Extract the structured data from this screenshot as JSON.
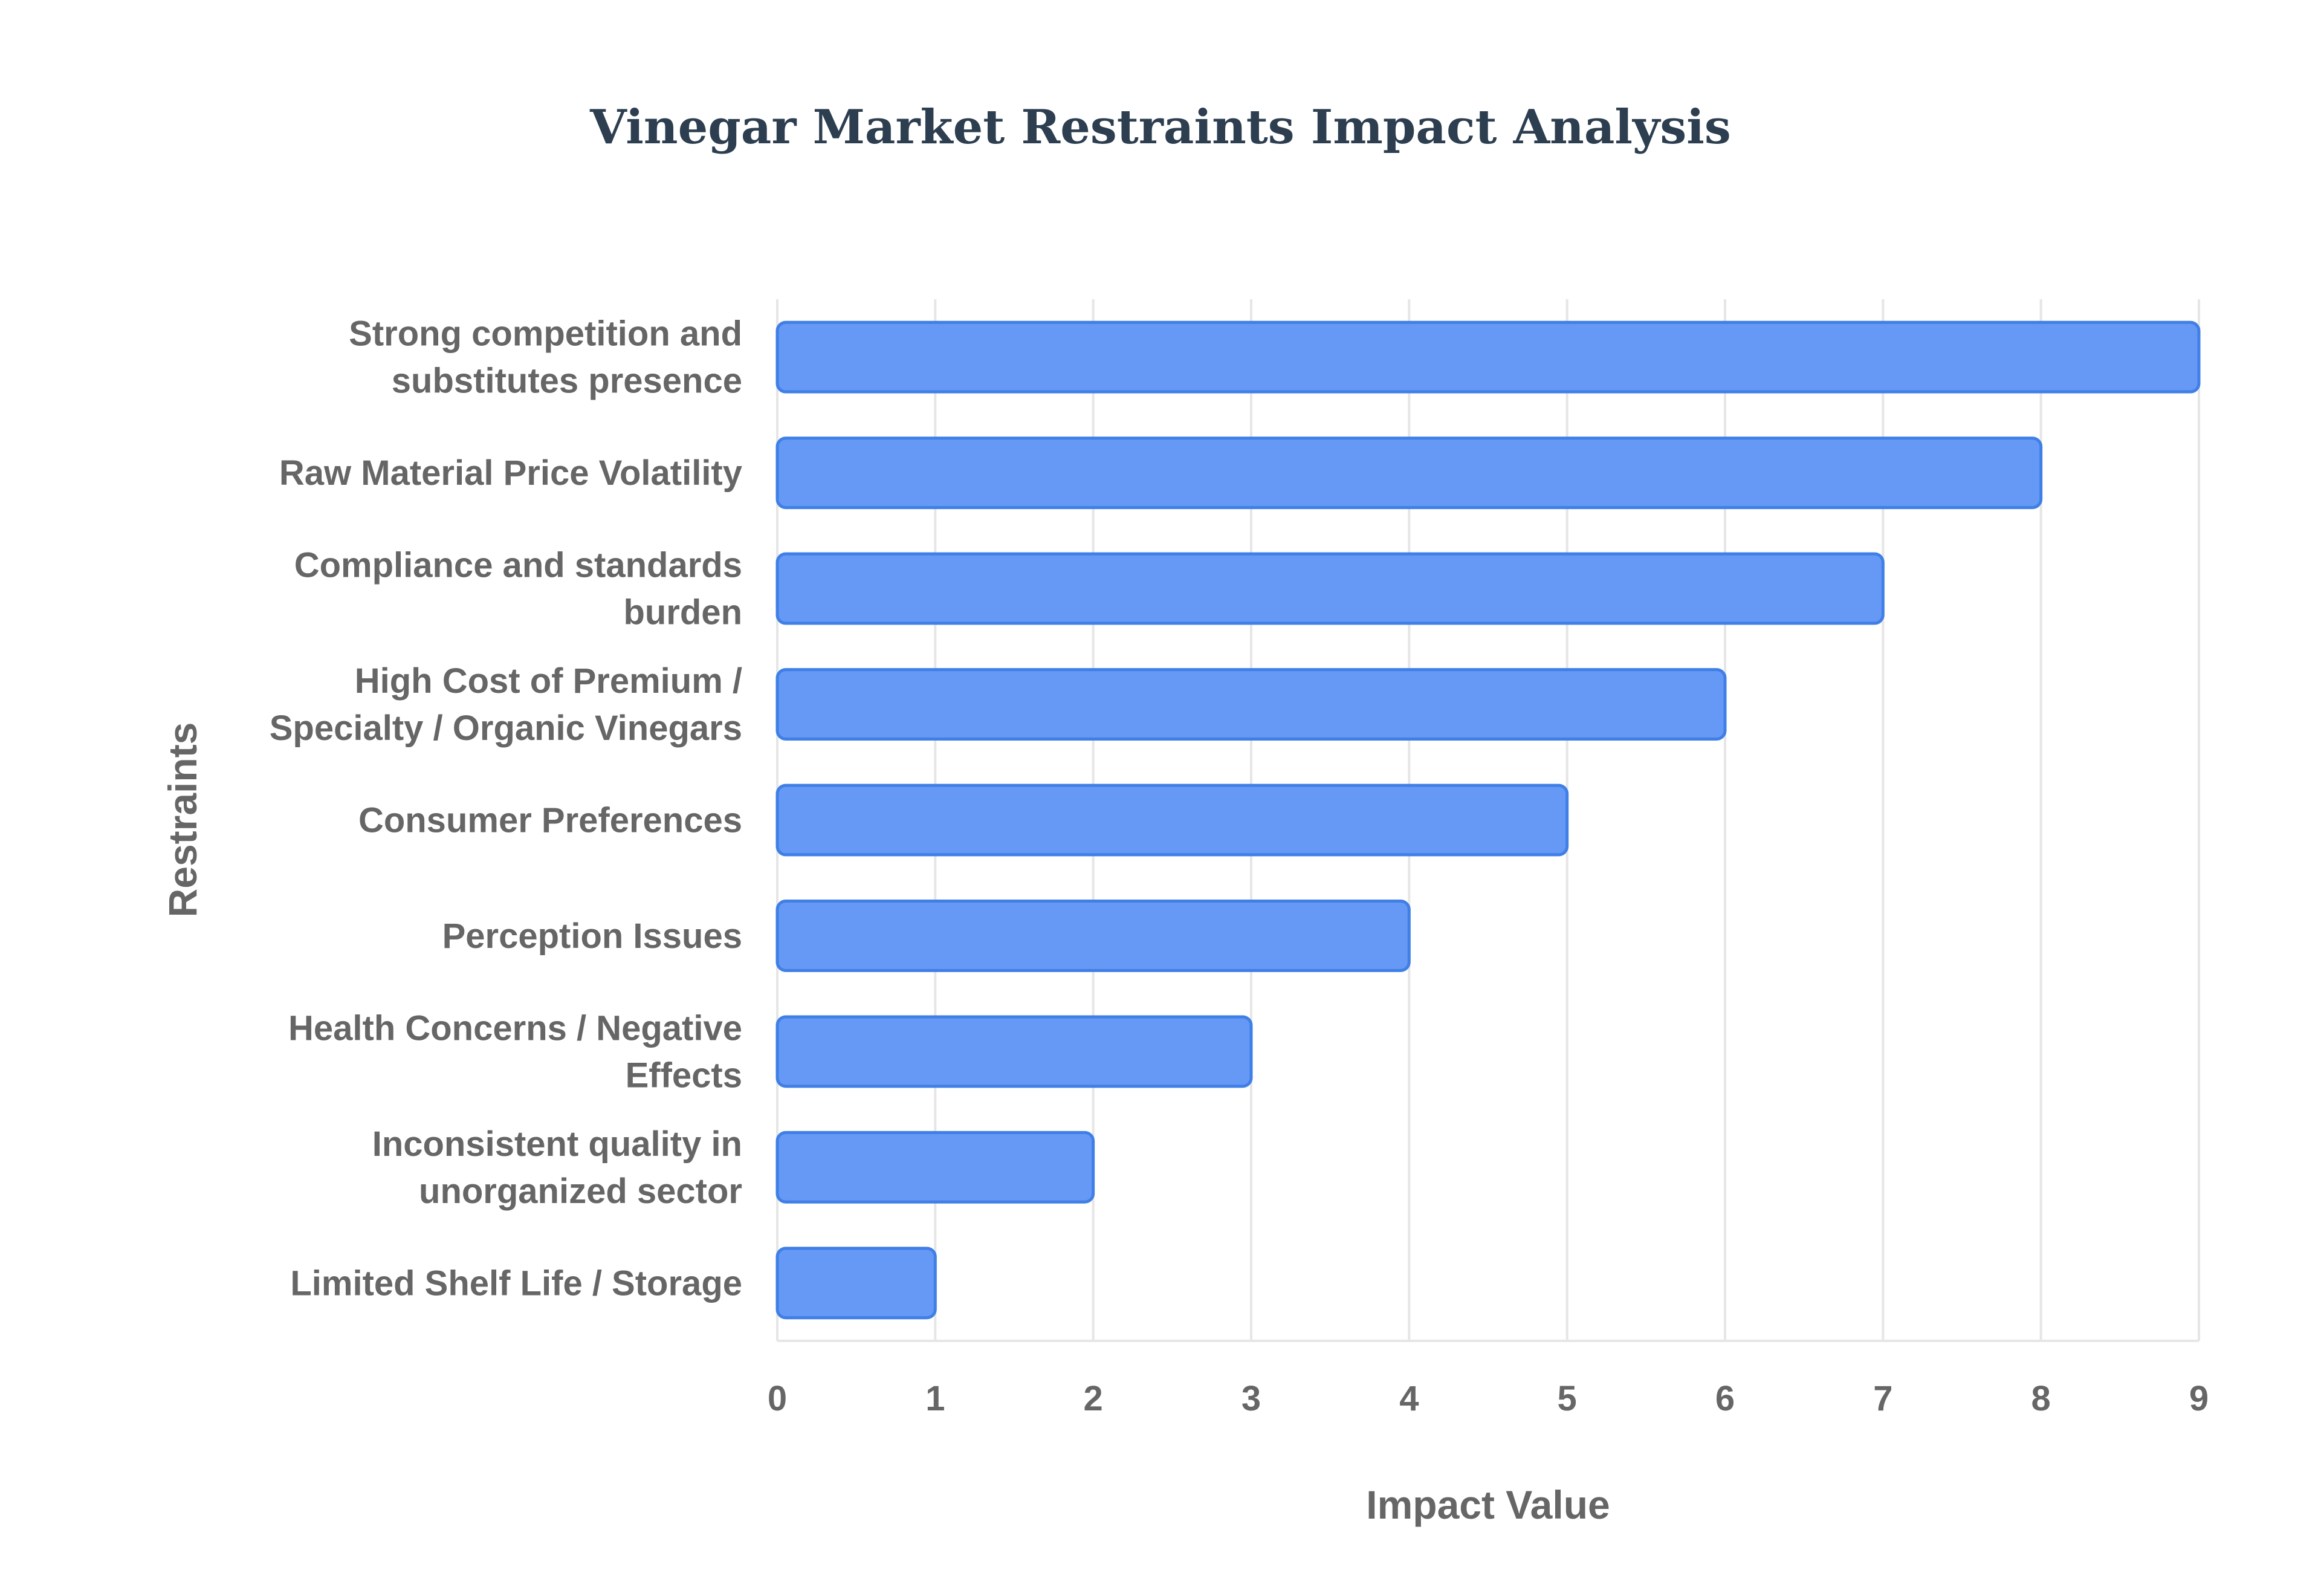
{
  "chart_data": {
    "type": "bar",
    "orientation": "horizontal",
    "title": "Vinegar Market Restraints Impact Analysis",
    "xlabel": "Impact Value",
    "ylabel": "Restraints",
    "xlim": [
      0,
      9
    ],
    "xticks": [
      "0",
      "1",
      "2",
      "3",
      "4",
      "5",
      "6",
      "7",
      "8",
      "9"
    ],
    "grid": true,
    "legend": "none",
    "bar_color": "#6699f5",
    "bar_border_color": "#3f7fe6",
    "categories": [
      [
        "Strong competition and",
        "substitutes presence"
      ],
      [
        "Raw Material Price Volatility"
      ],
      [
        "Compliance and standards",
        "burden"
      ],
      [
        "High Cost of Premium /",
        "Specialty / Organic Vinegars"
      ],
      [
        "Consumer Preferences"
      ],
      [
        "Perception Issues"
      ],
      [
        "Health Concerns / Negative",
        "Effects"
      ],
      [
        "Inconsistent quality in",
        "unorganized sector"
      ],
      [
        "Limited Shelf Life / Storage"
      ]
    ],
    "values": [
      9,
      8,
      7,
      6,
      5,
      4,
      3,
      2,
      1
    ]
  }
}
